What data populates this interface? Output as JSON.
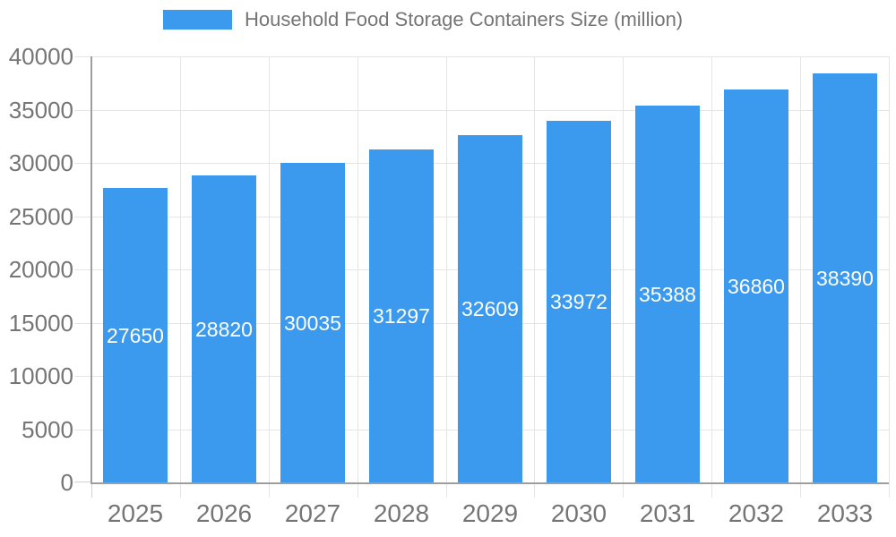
{
  "chart_data": {
    "type": "bar",
    "title": "Household Food Storage Containers Size (million)",
    "legend_position": "top",
    "categories": [
      "2025",
      "2026",
      "2027",
      "2028",
      "2029",
      "2030",
      "2031",
      "2032",
      "2033"
    ],
    "series": [
      {
        "name": "Household Food Storage Containers Size (million)",
        "values": [
          27650,
          28820,
          30035,
          31297,
          32609,
          33972,
          35388,
          36860,
          38390
        ]
      }
    ],
    "data_labels_shown": true,
    "xlabel": "",
    "ylabel": "",
    "ylim": [
      0,
      40000
    ],
    "ytick_step": 5000,
    "yticks": [
      0,
      5000,
      10000,
      15000,
      20000,
      25000,
      30000,
      35000,
      40000
    ],
    "grid": true,
    "colors": {
      "bar": "#3B99EE",
      "gridline": "#e5e5e5",
      "tick": "#d2d2d2",
      "axis_line": "#9e9e9e",
      "axis_text": "#757575",
      "value_label": "#ffffff",
      "background": "#ffffff"
    }
  }
}
